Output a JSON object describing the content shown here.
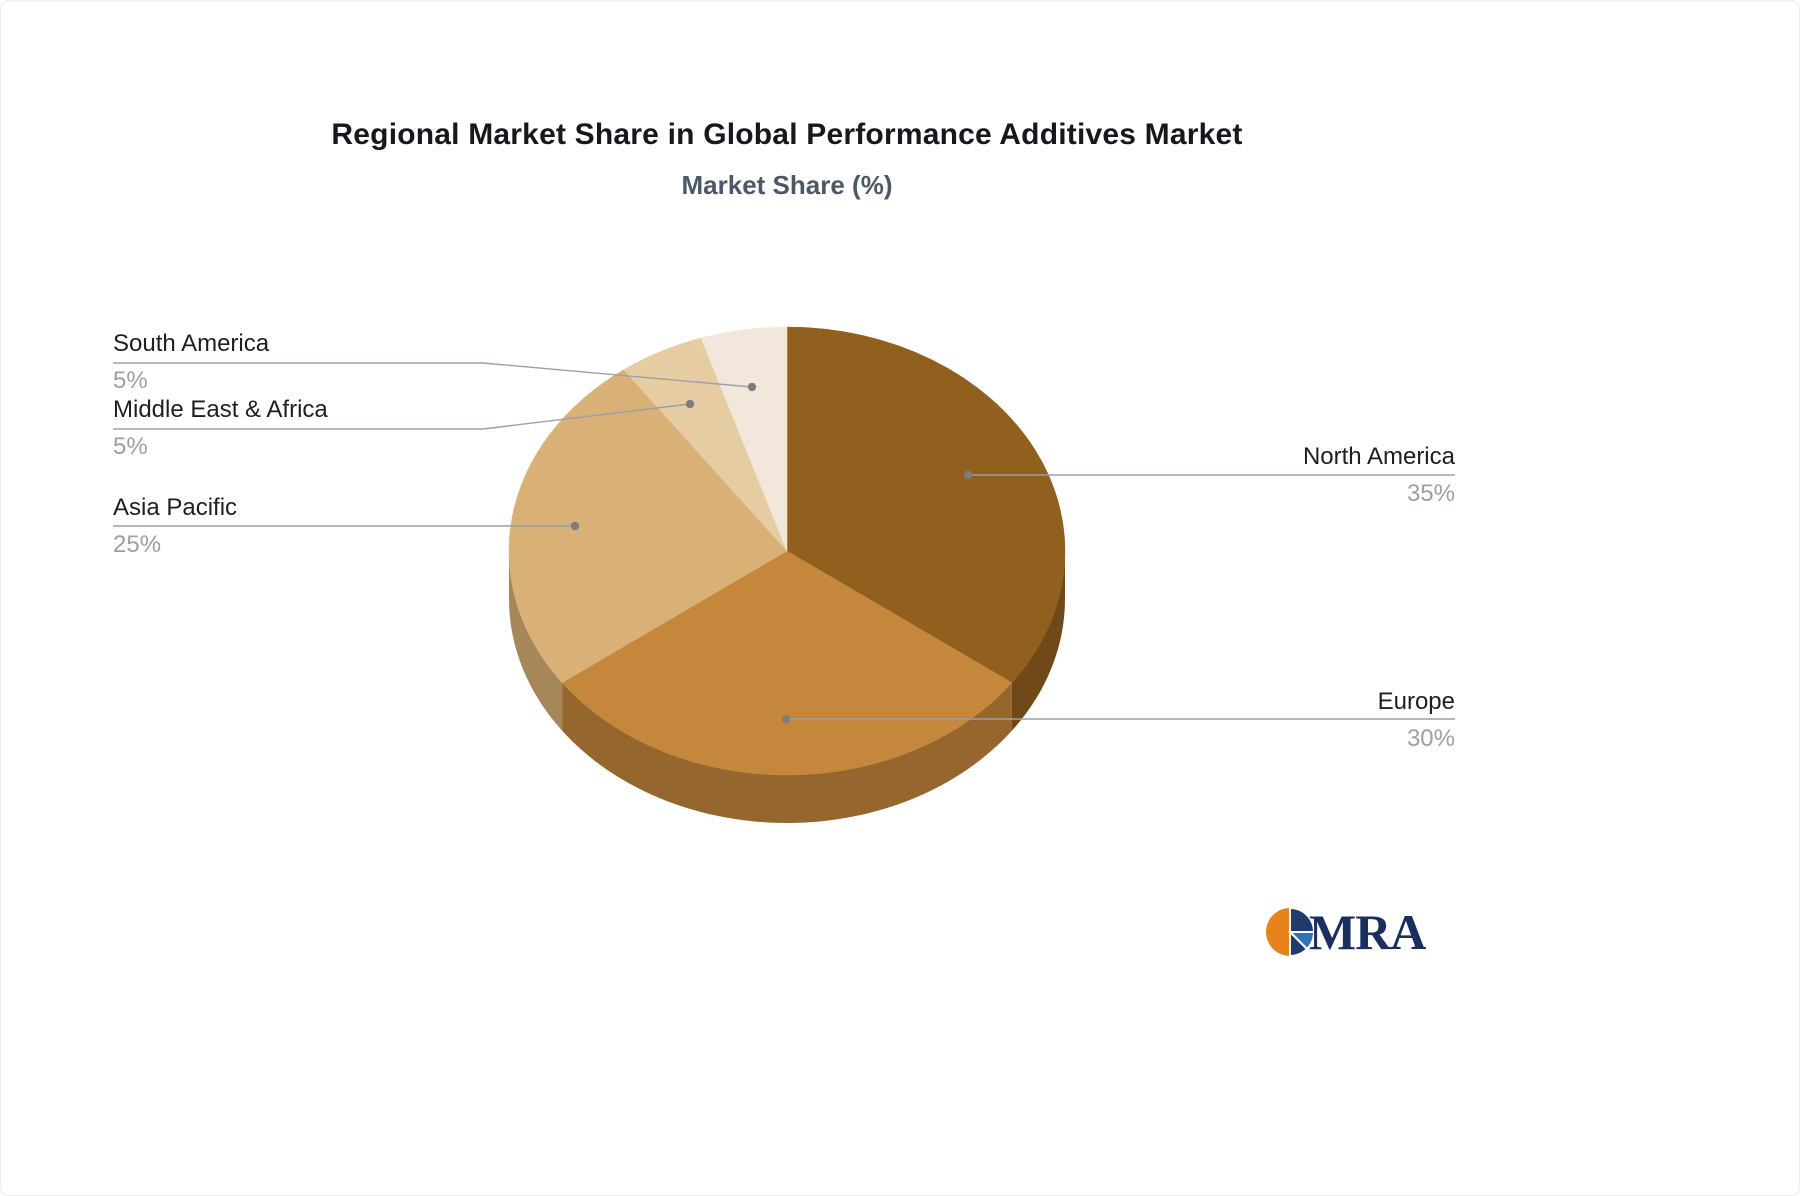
{
  "title": "Regional Market Share in Global Performance Additives Market",
  "subtitle": "Market Share (%)",
  "chart_data": {
    "type": "pie",
    "title": "Regional Market Share in Global Performance Additives Market",
    "subtitle": "Market Share (%)",
    "unit": "%",
    "effect": "3d",
    "direction": "clockwise",
    "start_angle_deg": 0,
    "legend_position": "callout-labels",
    "categories": [
      "North America",
      "Europe",
      "Asia Pacific",
      "Middle East & Africa",
      "South America"
    ],
    "values": [
      35,
      30,
      25,
      5,
      5
    ],
    "colors": [
      "#92601E",
      "#C4873C",
      "#D9B176",
      "#E6CCA3",
      "#F1E8DB"
    ],
    "leader_line_color": "#9aa0a6"
  },
  "labels": [
    {
      "name": "North America",
      "percent": "35%"
    },
    {
      "name": "Europe",
      "percent": "30%"
    },
    {
      "name": "Asia Pacific",
      "percent": "25%"
    },
    {
      "name": "Middle East & Africa",
      "percent": "5%"
    },
    {
      "name": "South America",
      "percent": "5%"
    }
  ],
  "logo": {
    "text": "MRA"
  }
}
